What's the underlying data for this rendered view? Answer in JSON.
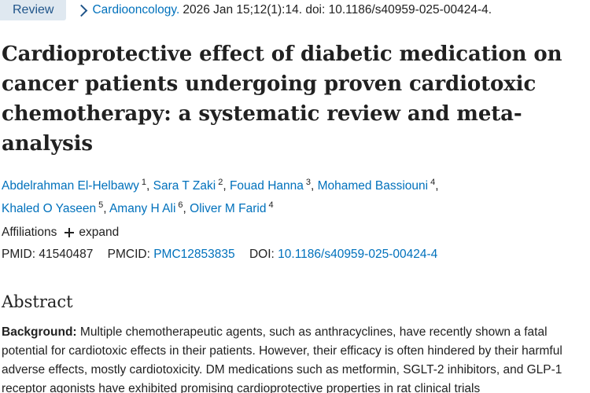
{
  "header": {
    "badge": "Review",
    "journal": "Cardiooncology.",
    "citation": "2026 Jan 15;12(1):14. doi: 10.1186/s40959-025-00424-4."
  },
  "article": {
    "title": "Cardioprotective effect of diabetic medication on cancer patients undergoing proven cardiotoxic chemotherapy: a systematic review and meta-analysis"
  },
  "authors": [
    {
      "name": "Abdelrahman El-Helbawy",
      "aff": "1"
    },
    {
      "name": "Sara T Zaki",
      "aff": "2"
    },
    {
      "name": "Fouad Hanna",
      "aff": "3"
    },
    {
      "name": "Mohamed Bassiouni",
      "aff": "4"
    },
    {
      "name": "Khaled O Yaseen",
      "aff": "5"
    },
    {
      "name": "Amany H Ali",
      "aff": "6"
    },
    {
      "name": "Oliver M Farid",
      "aff": "4"
    }
  ],
  "affiliations": {
    "label": "Affiliations",
    "expand": "expand"
  },
  "ids": {
    "pmid_label": "PMID:",
    "pmid": "41540487",
    "pmcid_label": "PMCID:",
    "pmcid": "PMC12853835",
    "doi_label": "DOI:",
    "doi": "10.1186/s40959-025-00424-4"
  },
  "abstract": {
    "heading": "Abstract",
    "background_label": "Background:",
    "background_text": "Multiple chemotherapeutic agents, such as anthracyclines, have recently shown a fatal potential for cardiotoxic effects in their patients. However, their efficacy is often hindered by their harmful adverse effects, mostly cardiotoxicity. DM medications such as metformin, SGLT-2 inhibitors, and GLP-1 receptor agonists have exhibited promising cardioprotective properties in rat clinical trials"
  }
}
